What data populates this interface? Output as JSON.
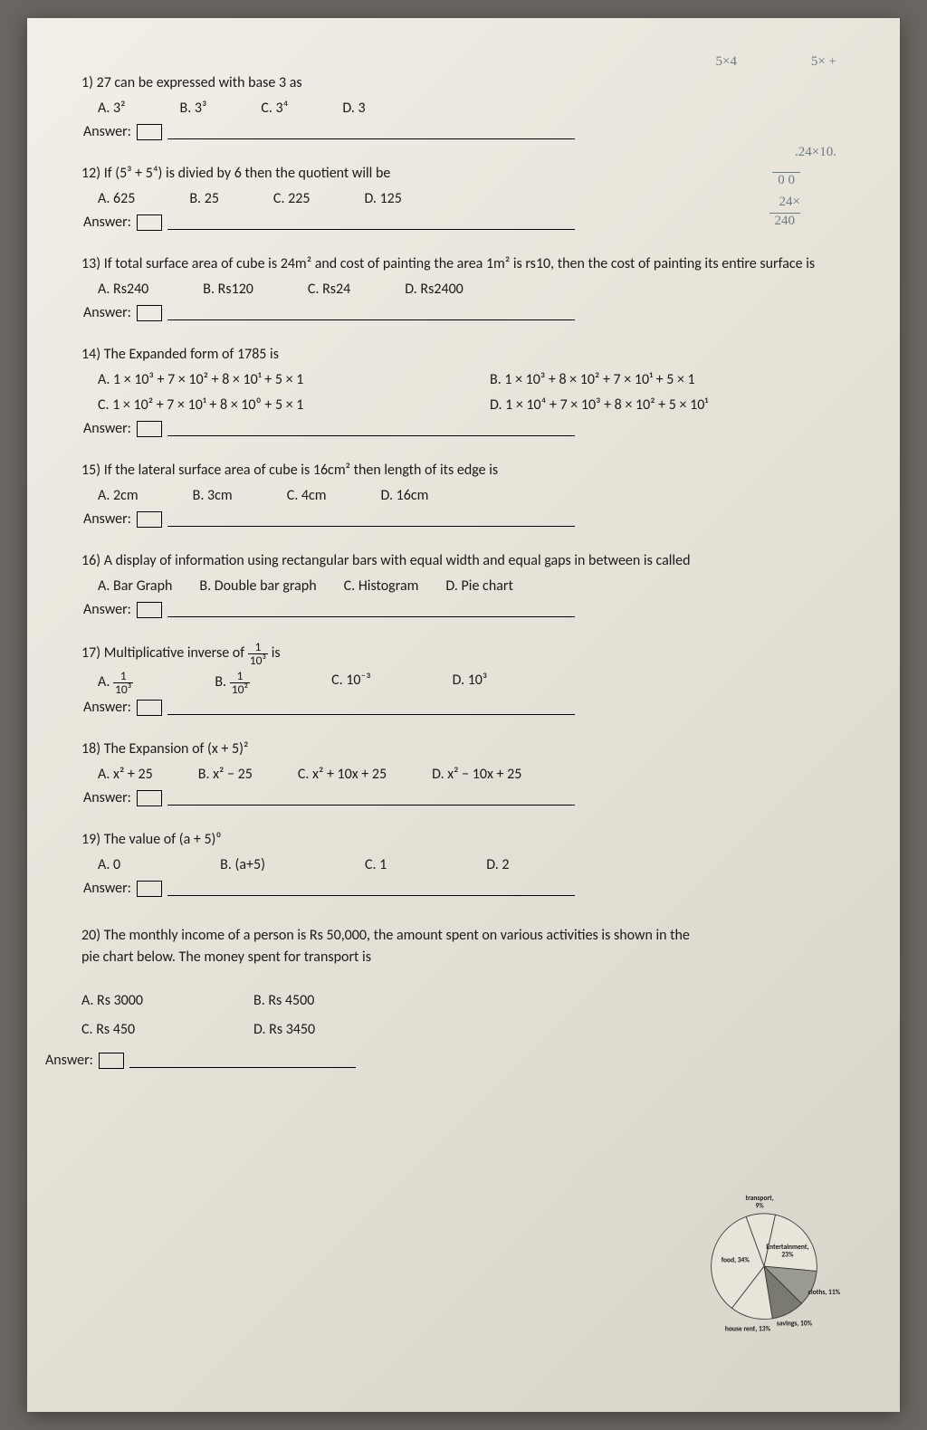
{
  "q11": {
    "text": "1) 27 can be expressed with base 3 as",
    "a": "A. 3²",
    "b": "B. 3³",
    "c": "C. 3⁴",
    "d": "D. 3",
    "ans": "Answer:"
  },
  "q12": {
    "text": "12) If (5³ + 5⁴) is divied by 6 then the quotient will be",
    "a": "A. 625",
    "b": "B. 25",
    "c": "C. 225",
    "d": "D. 125",
    "ans": "Answer:"
  },
  "q13": {
    "text": "13) If total surface area of cube is 24m² and cost of painting the area 1m² is rs10, then the cost of painting its entire surface is",
    "a": "A. Rs240",
    "b": "B. Rs120",
    "c": "C. Rs24",
    "d": "D. Rs2400",
    "ans": "Answer:"
  },
  "q14": {
    "text": "14) The Expanded form of 1785 is",
    "a": "A. 1 × 10³ + 7 × 10² + 8 × 10¹ + 5 × 1",
    "b": "B. 1 × 10³ + 8 × 10² + 7 × 10¹ + 5 × 1",
    "c": "C. 1 × 10² + 7 × 10¹ + 8 × 10⁰ + 5 × 1",
    "d": "D. 1 × 10⁴ + 7 × 10³ + 8 × 10² + 5 × 10¹",
    "ans": "Answer:"
  },
  "q15": {
    "text": "15) If the lateral surface area of cube is 16cm² then length of its edge is",
    "a": "A. 2cm",
    "b": "B. 3cm",
    "c": "C. 4cm",
    "d": "D. 16cm",
    "ans": "Answer:"
  },
  "q16": {
    "text": "16) A display of information using rectangular bars with equal width and equal gaps in between is called",
    "a": "A. Bar Graph",
    "b": "B. Double bar graph",
    "c": "C. Histogram",
    "d": "D. Pie chart",
    "ans": "Answer:"
  },
  "q17": {
    "text_pre": "17) Multiplicative inverse of ",
    "text_post": " is",
    "frac_num": "1",
    "frac_den": "10³",
    "a_num": "1",
    "a_den": "10³",
    "a_pre": "A. ",
    "b_num": "1",
    "b_den": "10²",
    "b_pre": "B. ",
    "c": "C.  10⁻³",
    "d": "D. 10³",
    "ans": "Answer:"
  },
  "q18": {
    "text": "18) The Expansion of (x + 5)²",
    "a": "A. x² + 25",
    "b": "B. x² − 25",
    "c": "C. x² + 10x + 25",
    "d": "D. x² − 10x + 25",
    "ans": "Answer:"
  },
  "q19": {
    "text": "19) The value of (a + 5)⁰",
    "a": "A. 0",
    "b": "B. (a+5)",
    "c": "C. 1",
    "d": "D. 2",
    "ans": "Answer:"
  },
  "q20": {
    "text": "20) The monthly income of a person is Rs 50,000, the amount spent on various activities is shown in the pie chart below. The money spent for transport is",
    "a": "A. Rs 3000",
    "b": "B. Rs 4500",
    "c": "C. Rs 450",
    "d": "D. Rs 3450",
    "ans": "Answer:"
  },
  "pie": {
    "slices": [
      {
        "label": "transport,",
        "sub": "9%",
        "pct": 9,
        "color": "#e8e4da"
      },
      {
        "label": "Entertainment,",
        "sub": "23%",
        "pct": 23,
        "color": "#e8e4da"
      },
      {
        "label": "cloths, 11%",
        "sub": "",
        "pct": 11,
        "color": "#9a9a92"
      },
      {
        "label": "savings, 10%",
        "sub": "",
        "pct": 10,
        "color": "#7a7a72"
      },
      {
        "label": "house rent, 13%",
        "sub": "",
        "pct": 13,
        "color": "#e8e4da"
      },
      {
        "label": "food, 34%",
        "sub": "",
        "pct": 34,
        "color": "#e8e4da"
      }
    ]
  },
  "handwriting": {
    "h1": "5×4",
    "h2": "5× +",
    "h3": ".24×10.",
    "h4": "0 0",
    "h5": "24×",
    "h6": "240"
  }
}
